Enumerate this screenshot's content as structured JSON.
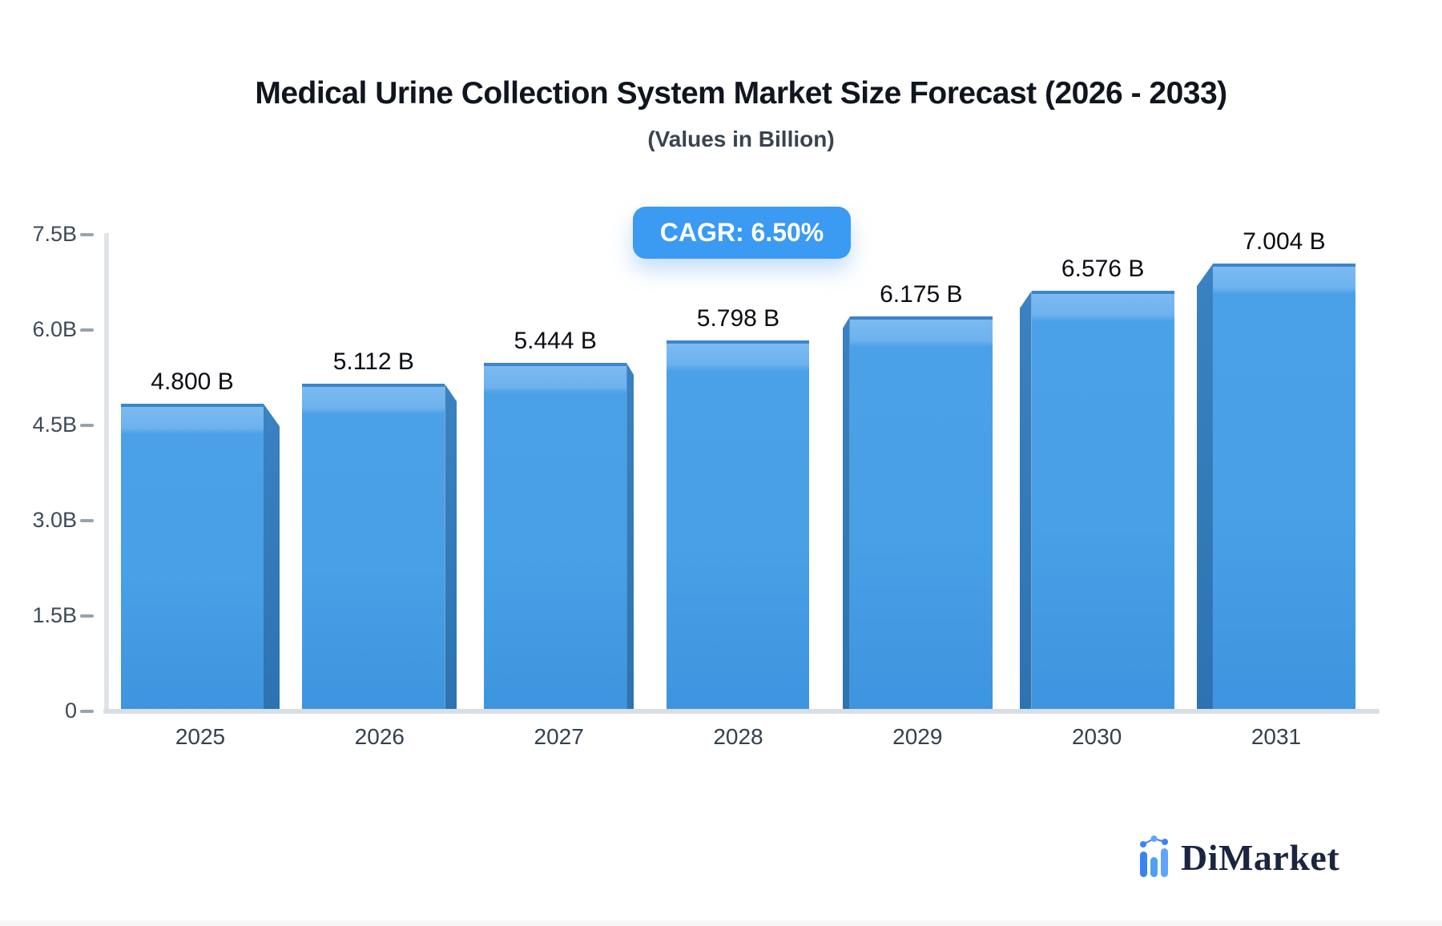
{
  "header": {
    "title": "Medical Urine Collection System Market Size Forecast (2026 - 2033)",
    "subtitle": "(Values in Billion)",
    "cagr_label": "CAGR: 6.50%"
  },
  "chart_data": {
    "type": "bar",
    "title": "Medical Urine Collection System Market Size Forecast (2026 - 2033)",
    "subtitle": "(Values in Billion)",
    "cagr": "6.50%",
    "categories": [
      "2025",
      "2026",
      "2027",
      "2028",
      "2029",
      "2030",
      "2031"
    ],
    "values": [
      4.8,
      5.112,
      5.444,
      5.798,
      6.175,
      6.576,
      7.004
    ],
    "value_labels": [
      "4.800 B",
      "5.112 B",
      "5.444 B",
      "5.798 B",
      "6.175 B",
      "6.576 B",
      "7.004 B"
    ],
    "xlabel": "",
    "ylabel": "",
    "ylim": [
      0,
      7.5
    ],
    "yticks": [
      {
        "label": "7.5B",
        "value": 7.5
      },
      {
        "label": "6.0B",
        "value": 6.0
      },
      {
        "label": "4.5B",
        "value": 4.5
      },
      {
        "label": "3.0B",
        "value": 3.0
      },
      {
        "label": "1.5B",
        "value": 1.5
      },
      {
        "label": "0",
        "value": 0
      }
    ],
    "grid": false,
    "legend": null,
    "colors": {
      "bar_fill": "#48a0e6",
      "bar_fill_light": "#7cbaf1",
      "bar_fill_dark": "#3e95df",
      "bar_top_line": "#3a86cc",
      "bar_side_face": "#2f77b6",
      "badge_bg": "#3b9af2",
      "axis_line": "#e0e4ea",
      "tick_dash": "#99a2ae",
      "axis_label": "#3f4a59",
      "value_label": "#0a0d12",
      "title": "#10151f"
    }
  },
  "footer": {
    "logo_text": "DiMarket"
  }
}
